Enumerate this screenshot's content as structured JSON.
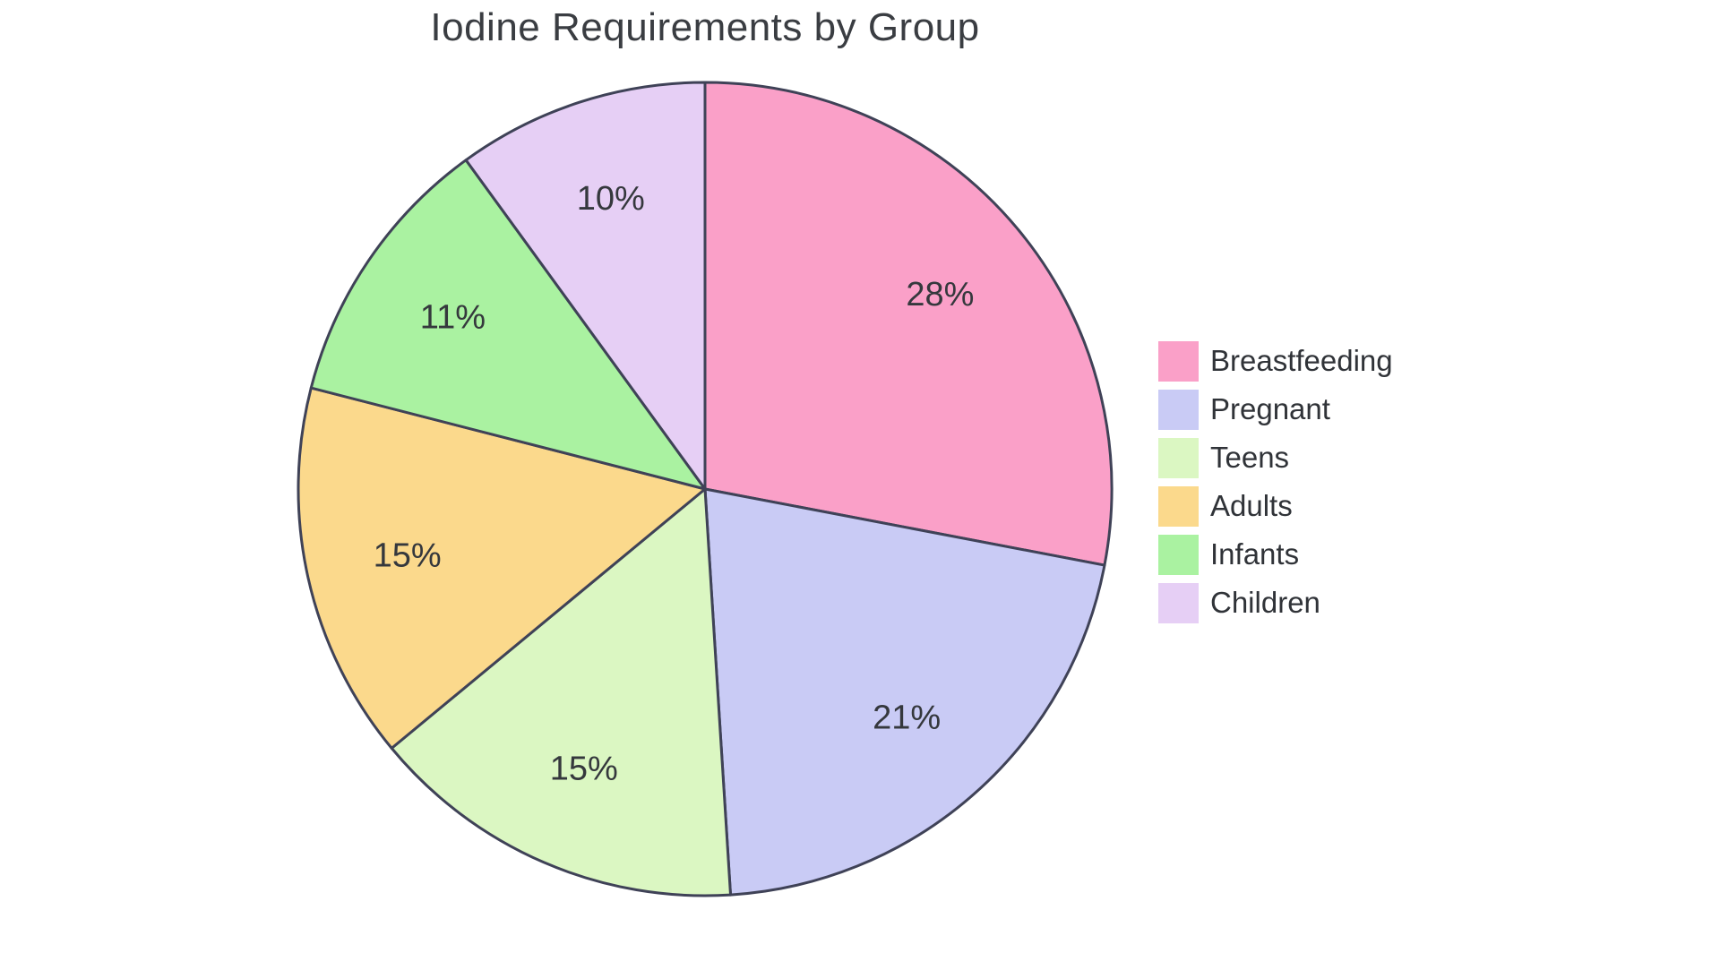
{
  "page": {
    "background_color": "#ffffff"
  },
  "chart_data": {
    "type": "pie",
    "title": "Iodine Requirements by Group",
    "categories": [
      "Breastfeeding",
      "Pregnant",
      "Teens",
      "Adults",
      "Infants",
      "Children"
    ],
    "values": [
      28,
      21,
      15,
      15,
      11,
      10
    ],
    "slice_labels": [
      "28%",
      "21%",
      "15%",
      "15%",
      "11%",
      "10%"
    ],
    "colors": [
      "#FAA0C8",
      "#C9CBF5",
      "#DBF7C2",
      "#FBD98C",
      "#AAF2A1",
      "#E6CFF5"
    ],
    "start_angle_deg": 90,
    "direction": "clockwise",
    "stroke_color": "#3F4257",
    "label_color": "#35383D",
    "title_color": "#3A3D42",
    "legend_position": "right"
  }
}
